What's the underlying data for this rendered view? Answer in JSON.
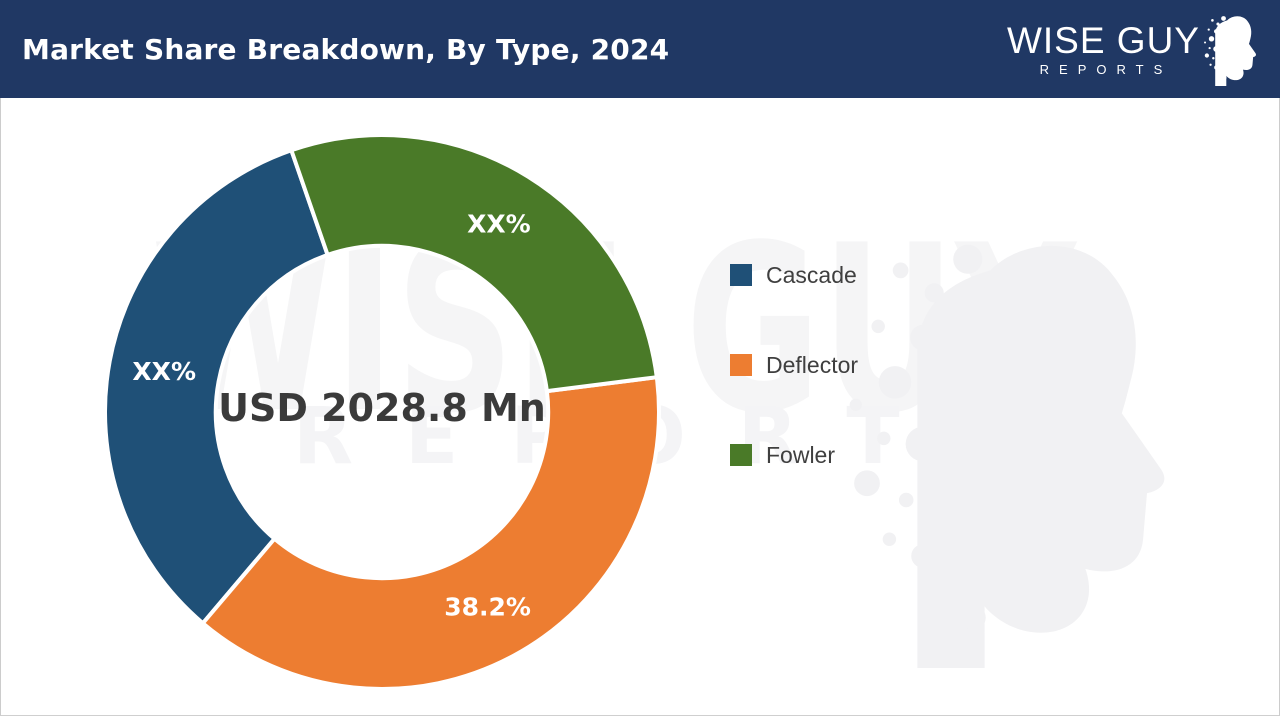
{
  "header": {
    "title": "Market Share Breakdown, By Type, 2024",
    "logo": {
      "wordmark": "WISE GUY",
      "subtitle": "REPORTS"
    }
  },
  "watermark": {
    "wordmark": "WISE GUY",
    "subtitle": "REPORTS"
  },
  "chart_data": {
    "type": "pie",
    "subtype": "donut",
    "title": "Market Share Breakdown, By Type, 2024",
    "center_label": "USD 2028.8 Mn",
    "series": [
      {
        "name": "Cascade",
        "label": "XX%",
        "value": 33.5,
        "color": "#1F5077"
      },
      {
        "name": "Deflector",
        "label": "38.2%",
        "value": 38.2,
        "color": "#ED7D31"
      },
      {
        "name": "Fowler",
        "label": "XX%",
        "value": 28.3,
        "color": "#4A7A28"
      }
    ],
    "start_angle_deg": 109.1,
    "direction": "counterclockwise",
    "inner_radius_ratio": 0.6,
    "legend_position": "right",
    "theme": {
      "header_navy": "#203864",
      "center_text_color": "#3A3A3A",
      "watermark_color": "#F5F5F6",
      "slice_gap_color": "#FFFFFF"
    }
  }
}
